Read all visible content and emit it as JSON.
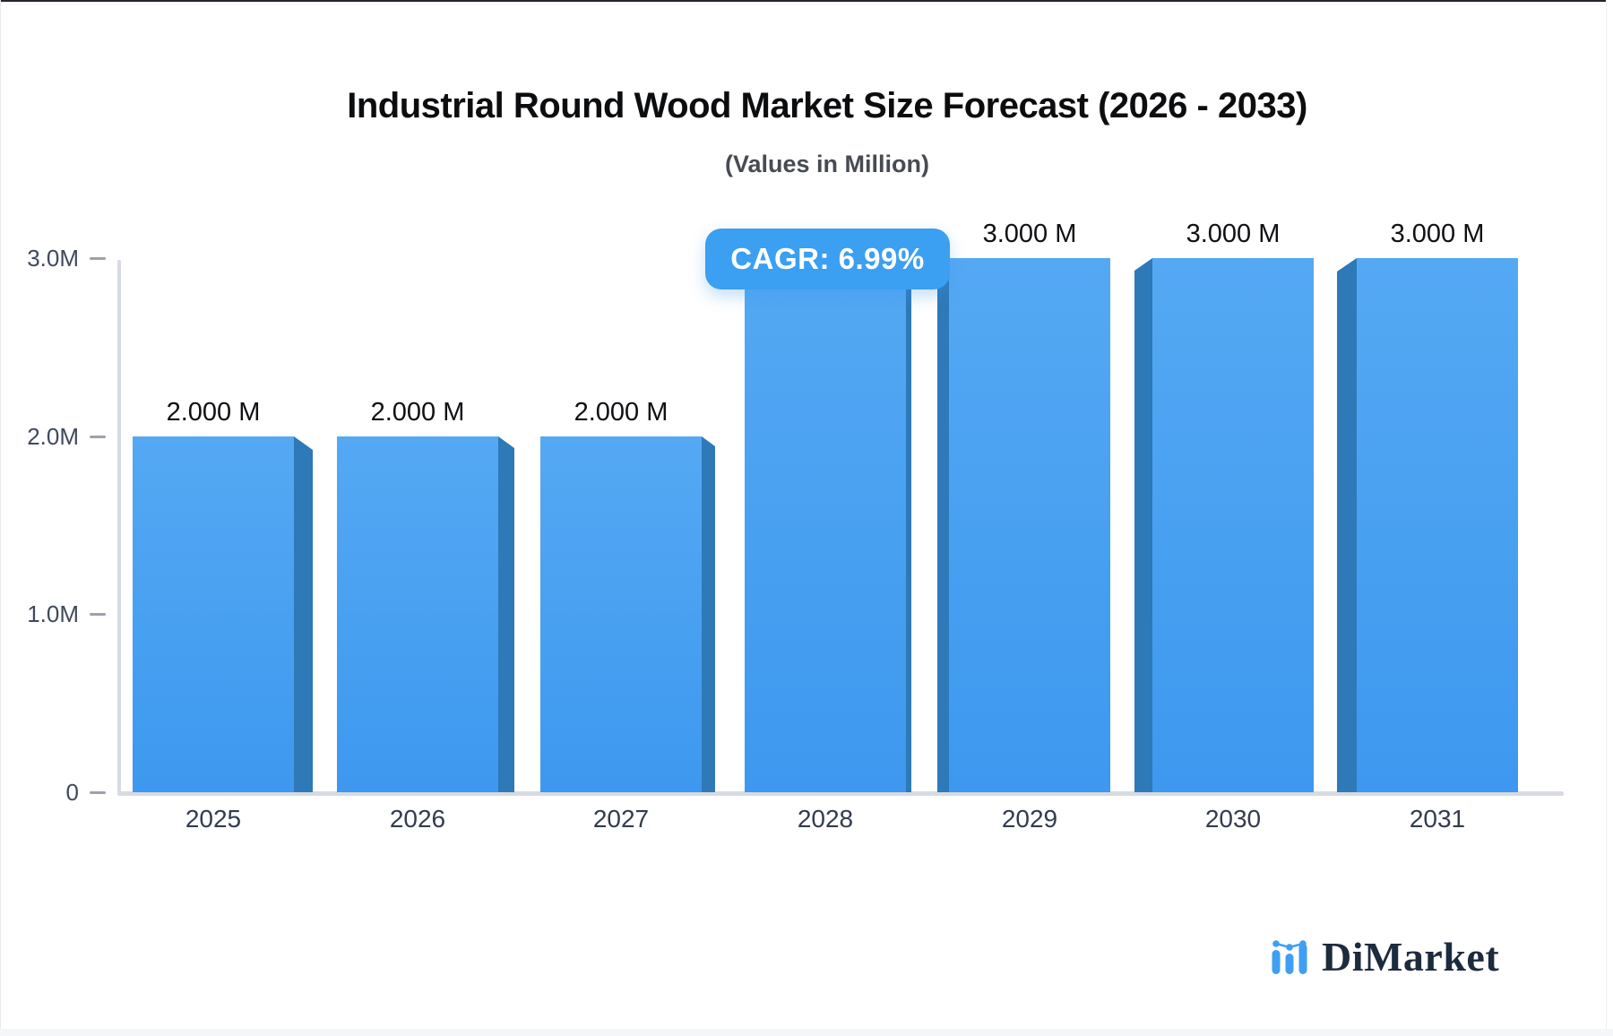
{
  "header": {
    "title": "Industrial Round Wood Market Size Forecast (2026 - 2033)",
    "subtitle": "(Values in Million)"
  },
  "cagr_badge": {
    "label": "CAGR: 6.99%"
  },
  "chart_data": {
    "type": "bar",
    "title": "Industrial Round Wood Market Size Forecast (2026 - 2033)",
    "subtitle": "(Values in Million)",
    "unit": "Million",
    "categories": [
      "2025",
      "2026",
      "2027",
      "2028",
      "2029",
      "2030",
      "2031"
    ],
    "values": [
      2.0,
      2.0,
      2.0,
      3.0,
      3.0,
      3.0,
      3.0
    ],
    "bar_labels": [
      "2.000 M",
      "2.000 M",
      "2.000 M",
      "",
      "3.000 M",
      "3.000 M",
      "3.000 M"
    ],
    "annotation": "CAGR: 6.99%",
    "y_axis": {
      "range": [
        0,
        3
      ],
      "ticks": [
        {
          "value": 3,
          "label": "3.0M"
        },
        {
          "value": 2,
          "label": "2.0M"
        },
        {
          "value": 1,
          "label": "1.0M"
        },
        {
          "value": 0,
          "label": "0"
        }
      ]
    },
    "grid": false,
    "legend": false,
    "bar_color_top": "#55a9f3",
    "bar_color_bottom": "#3d98ef",
    "bar_side_color": "#2e79b7"
  },
  "footer": {
    "brand": "DiMarket",
    "logo_icon": "bar-chart-trend-icon"
  },
  "colors": {
    "badge": "#3b9ff2",
    "axis": "#d7dbe1",
    "tick": "#9aa2ad",
    "y_label": "#3e4a5c",
    "x_label": "#323c4f",
    "bar_label": "#0e1013",
    "title": "#0c0d0f",
    "subtitle": "#474b52",
    "brand_text": "#1c2b3e",
    "brand_icon": "#3f9ff3"
  }
}
